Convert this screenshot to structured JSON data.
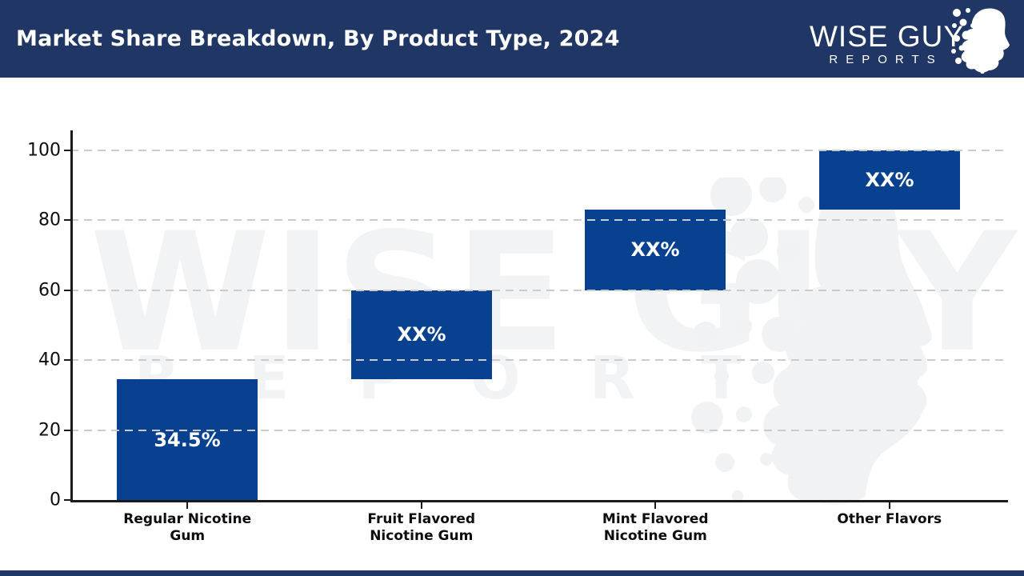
{
  "header": {
    "title": "Market Share Breakdown, By Product Type, 2024",
    "bg_color": "#203664",
    "logo": {
      "line1": "WISE GUY",
      "line2": "REPORTS"
    }
  },
  "watermark": {
    "line1": "WISE GUY",
    "line2": "REPORTS"
  },
  "chart_data": {
    "type": "bar",
    "subtype": "waterfall",
    "title": "Market Share Breakdown, By Product Type, 2024",
    "categories": [
      "Regular Nicotine Gum",
      "Fruit Flavored Nicotine Gum",
      "Mint Flavored Nicotine Gum",
      "Other Flavors"
    ],
    "category_label_lines": [
      [
        "Regular Nicotine",
        "Gum"
      ],
      [
        "Fruit Flavored",
        "Nicotine Gum"
      ],
      [
        "Mint Flavored",
        "Nicotine Gum"
      ],
      [
        "Other Flavors"
      ]
    ],
    "segments": [
      {
        "category": "Regular Nicotine Gum",
        "start": 0,
        "end": 34.5,
        "label": "34.5%"
      },
      {
        "category": "Fruit Flavored Nicotine Gum",
        "start": 34.5,
        "end": 60,
        "label": "XX%"
      },
      {
        "category": "Mint Flavored Nicotine Gum",
        "start": 60,
        "end": 83,
        "label": "XX%"
      },
      {
        "category": "Other Flavors",
        "start": 83,
        "end": 100,
        "label": "XX%"
      }
    ],
    "xlabel": "",
    "ylabel": "",
    "ylim": [
      0,
      100
    ],
    "yticks": [
      0,
      20,
      40,
      60,
      80,
      100
    ],
    "grid": "horizontal-dashed",
    "legend": "none",
    "bar_color": "#07418f",
    "bar_label_color": "#ffffff",
    "axis_color": "#1a1a1a"
  }
}
